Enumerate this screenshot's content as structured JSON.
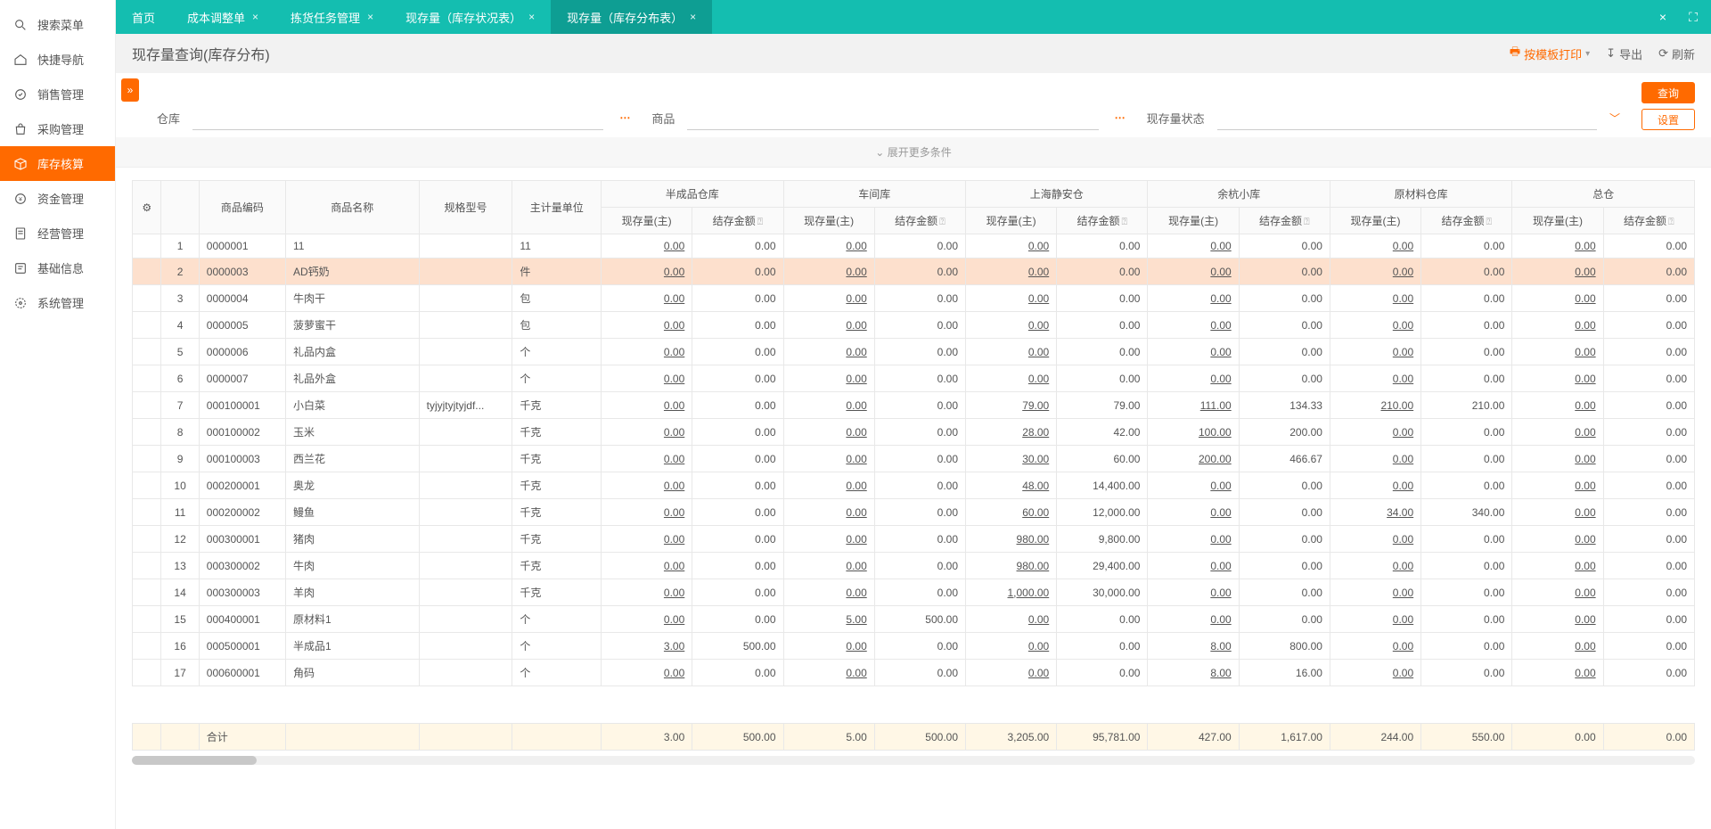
{
  "colors": {
    "accent": "#ff6a00",
    "tabbar": "#14beb0",
    "tabbarActive": "#0e9e93",
    "rowHighlight": "#fde0cd",
    "totalBg": "#fff7e6"
  },
  "sidebar": {
    "items": [
      {
        "label": "搜索菜单",
        "icon": "search"
      },
      {
        "label": "快捷导航",
        "icon": "home"
      },
      {
        "label": "销售管理",
        "icon": "badge"
      },
      {
        "label": "采购管理",
        "icon": "bag"
      },
      {
        "label": "库存核算",
        "icon": "box",
        "active": true
      },
      {
        "label": "资金管理",
        "icon": "coin"
      },
      {
        "label": "经营管理",
        "icon": "doc"
      },
      {
        "label": "基础信息",
        "icon": "info"
      },
      {
        "label": "系统管理",
        "icon": "gear-dashed"
      }
    ]
  },
  "tabs": [
    {
      "label": "首页",
      "closable": false
    },
    {
      "label": "成本调整单",
      "closable": true
    },
    {
      "label": "拣货任务管理",
      "closable": true
    },
    {
      "label": "现存量（库存状况表）",
      "closable": true
    },
    {
      "label": "现存量（库存分布表）",
      "closable": true,
      "active": true
    }
  ],
  "page": {
    "title": "现存量查询(库存分布)",
    "actions": {
      "print": "按模板打印",
      "export": "导出",
      "refresh": "刷新"
    }
  },
  "filters": {
    "warehouse": {
      "label": "仓库",
      "value": ""
    },
    "product": {
      "label": "商品",
      "value": ""
    },
    "status": {
      "label": "现存量状态",
      "value": ""
    },
    "queryBtn": "查询",
    "settingBtn": "设置",
    "expandMore": "展开更多条件"
  },
  "table": {
    "headerTopFixed": [
      "商品编码",
      "商品名称",
      "规格型号",
      "主计量单位"
    ],
    "warehouseGroups": [
      "半成品仓库",
      "车间库",
      "上海静安仓",
      "余杭小库",
      "原材料仓库",
      "总仓"
    ],
    "subCols": {
      "qty": "现存量(主)",
      "amt": "结存金额"
    },
    "help": "⍰",
    "totalLabel": "合计",
    "rows": [
      {
        "code": "0000001",
        "name": "11",
        "spec": "",
        "unit": "11",
        "v": [
          [
            "0.00",
            "0.00"
          ],
          [
            "0.00",
            "0.00"
          ],
          [
            "0.00",
            "0.00"
          ],
          [
            "0.00",
            "0.00"
          ],
          [
            "0.00",
            "0.00"
          ],
          [
            "0.00",
            "0.00"
          ]
        ]
      },
      {
        "code": "0000003",
        "name": "AD钙奶",
        "spec": "",
        "unit": "件",
        "highlight": true,
        "v": [
          [
            "0.00",
            "0.00"
          ],
          [
            "0.00",
            "0.00"
          ],
          [
            "0.00",
            "0.00"
          ],
          [
            "0.00",
            "0.00"
          ],
          [
            "0.00",
            "0.00"
          ],
          [
            "0.00",
            "0.00"
          ]
        ]
      },
      {
        "code": "0000004",
        "name": "牛肉干",
        "spec": "",
        "unit": "包",
        "v": [
          [
            "0.00",
            "0.00"
          ],
          [
            "0.00",
            "0.00"
          ],
          [
            "0.00",
            "0.00"
          ],
          [
            "0.00",
            "0.00"
          ],
          [
            "0.00",
            "0.00"
          ],
          [
            "0.00",
            "0.00"
          ]
        ]
      },
      {
        "code": "0000005",
        "name": "菠萝蜜干",
        "spec": "",
        "unit": "包",
        "v": [
          [
            "0.00",
            "0.00"
          ],
          [
            "0.00",
            "0.00"
          ],
          [
            "0.00",
            "0.00"
          ],
          [
            "0.00",
            "0.00"
          ],
          [
            "0.00",
            "0.00"
          ],
          [
            "0.00",
            "0.00"
          ]
        ]
      },
      {
        "code": "0000006",
        "name": "礼品内盒",
        "spec": "",
        "unit": "个",
        "v": [
          [
            "0.00",
            "0.00"
          ],
          [
            "0.00",
            "0.00"
          ],
          [
            "0.00",
            "0.00"
          ],
          [
            "0.00",
            "0.00"
          ],
          [
            "0.00",
            "0.00"
          ],
          [
            "0.00",
            "0.00"
          ]
        ]
      },
      {
        "code": "0000007",
        "name": "礼品外盒",
        "spec": "",
        "unit": "个",
        "v": [
          [
            "0.00",
            "0.00"
          ],
          [
            "0.00",
            "0.00"
          ],
          [
            "0.00",
            "0.00"
          ],
          [
            "0.00",
            "0.00"
          ],
          [
            "0.00",
            "0.00"
          ],
          [
            "0.00",
            "0.00"
          ]
        ]
      },
      {
        "code": "000100001",
        "name": "小白菜",
        "spec": "tyjyjtyjtyjdf...",
        "unit": "千克",
        "v": [
          [
            "0.00",
            "0.00"
          ],
          [
            "0.00",
            "0.00"
          ],
          [
            "79.00",
            "79.00"
          ],
          [
            "111.00",
            "134.33"
          ],
          [
            "210.00",
            "210.00"
          ],
          [
            "0.00",
            "0.00"
          ]
        ]
      },
      {
        "code": "000100002",
        "name": "玉米",
        "spec": "",
        "unit": "千克",
        "v": [
          [
            "0.00",
            "0.00"
          ],
          [
            "0.00",
            "0.00"
          ],
          [
            "28.00",
            "42.00"
          ],
          [
            "100.00",
            "200.00"
          ],
          [
            "0.00",
            "0.00"
          ],
          [
            "0.00",
            "0.00"
          ]
        ]
      },
      {
        "code": "000100003",
        "name": "西兰花",
        "spec": "",
        "unit": "千克",
        "v": [
          [
            "0.00",
            "0.00"
          ],
          [
            "0.00",
            "0.00"
          ],
          [
            "30.00",
            "60.00"
          ],
          [
            "200.00",
            "466.67"
          ],
          [
            "0.00",
            "0.00"
          ],
          [
            "0.00",
            "0.00"
          ]
        ]
      },
      {
        "code": "000200001",
        "name": "奥龙",
        "spec": "",
        "unit": "千克",
        "v": [
          [
            "0.00",
            "0.00"
          ],
          [
            "0.00",
            "0.00"
          ],
          [
            "48.00",
            "14,400.00"
          ],
          [
            "0.00",
            "0.00"
          ],
          [
            "0.00",
            "0.00"
          ],
          [
            "0.00",
            "0.00"
          ]
        ]
      },
      {
        "code": "000200002",
        "name": "鳗鱼",
        "spec": "",
        "unit": "千克",
        "v": [
          [
            "0.00",
            "0.00"
          ],
          [
            "0.00",
            "0.00"
          ],
          [
            "60.00",
            "12,000.00"
          ],
          [
            "0.00",
            "0.00"
          ],
          [
            "34.00",
            "340.00"
          ],
          [
            "0.00",
            "0.00"
          ]
        ]
      },
      {
        "code": "000300001",
        "name": "猪肉",
        "spec": "",
        "unit": "千克",
        "v": [
          [
            "0.00",
            "0.00"
          ],
          [
            "0.00",
            "0.00"
          ],
          [
            "980.00",
            "9,800.00"
          ],
          [
            "0.00",
            "0.00"
          ],
          [
            "0.00",
            "0.00"
          ],
          [
            "0.00",
            "0.00"
          ]
        ]
      },
      {
        "code": "000300002",
        "name": "牛肉",
        "spec": "",
        "unit": "千克",
        "v": [
          [
            "0.00",
            "0.00"
          ],
          [
            "0.00",
            "0.00"
          ],
          [
            "980.00",
            "29,400.00"
          ],
          [
            "0.00",
            "0.00"
          ],
          [
            "0.00",
            "0.00"
          ],
          [
            "0.00",
            "0.00"
          ]
        ]
      },
      {
        "code": "000300003",
        "name": "羊肉",
        "spec": "",
        "unit": "千克",
        "v": [
          [
            "0.00",
            "0.00"
          ],
          [
            "0.00",
            "0.00"
          ],
          [
            "1,000.00",
            "30,000.00"
          ],
          [
            "0.00",
            "0.00"
          ],
          [
            "0.00",
            "0.00"
          ],
          [
            "0.00",
            "0.00"
          ]
        ]
      },
      {
        "code": "000400001",
        "name": "原材料1",
        "spec": "",
        "unit": "个",
        "v": [
          [
            "0.00",
            "0.00"
          ],
          [
            "5.00",
            "500.00"
          ],
          [
            "0.00",
            "0.00"
          ],
          [
            "0.00",
            "0.00"
          ],
          [
            "0.00",
            "0.00"
          ],
          [
            "0.00",
            "0.00"
          ]
        ]
      },
      {
        "code": "000500001",
        "name": "半成品1",
        "spec": "",
        "unit": "个",
        "v": [
          [
            "3.00",
            "500.00"
          ],
          [
            "0.00",
            "0.00"
          ],
          [
            "0.00",
            "0.00"
          ],
          [
            "8.00",
            "800.00"
          ],
          [
            "0.00",
            "0.00"
          ],
          [
            "0.00",
            "0.00"
          ]
        ]
      },
      {
        "code": "000600001",
        "name": "角码",
        "spec": "",
        "unit": "个",
        "v": [
          [
            "0.00",
            "0.00"
          ],
          [
            "0.00",
            "0.00"
          ],
          [
            "0.00",
            "0.00"
          ],
          [
            "8.00",
            "16.00"
          ],
          [
            "0.00",
            "0.00"
          ],
          [
            "0.00",
            "0.00"
          ]
        ]
      }
    ],
    "totals": [
      "3.00",
      "500.00",
      "5.00",
      "500.00",
      "3,205.00",
      "95,781.00",
      "427.00",
      "1,617.00",
      "244.00",
      "550.00",
      "0.00",
      "0.00"
    ]
  }
}
